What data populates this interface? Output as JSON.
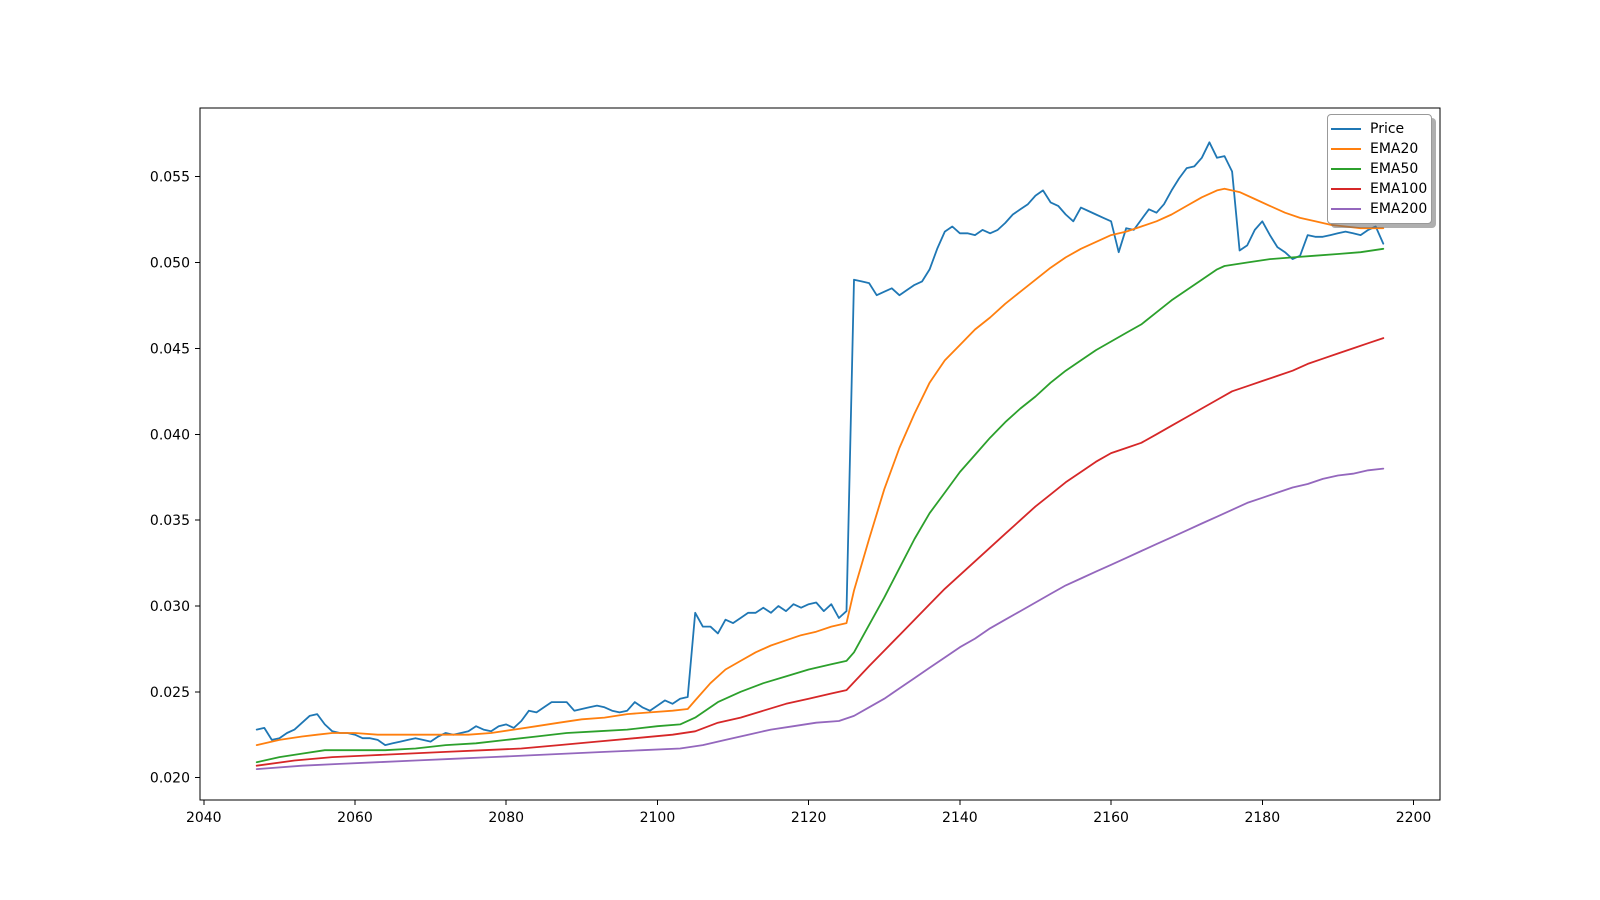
{
  "figure": {
    "background": "#ffffff"
  },
  "chart_data": {
    "type": "line",
    "title": "",
    "xlabel": "",
    "ylabel": "",
    "grid": false,
    "legend_position": "upper right",
    "xlim": [
      2039.5,
      2203.5
    ],
    "ylim": [
      0.0187,
      0.059
    ],
    "xticks": {
      "values": [
        2040,
        2060,
        2080,
        2100,
        2120,
        2140,
        2160,
        2180,
        2200
      ],
      "labels": [
        "2040",
        "2060",
        "2080",
        "2100",
        "2120",
        "2140",
        "2160",
        "2180",
        "2200"
      ]
    },
    "yticks": {
      "values": [
        0.02,
        0.025,
        0.03,
        0.035,
        0.04,
        0.045,
        0.05,
        0.055
      ],
      "labels": [
        "0.020",
        "0.025",
        "0.030",
        "0.035",
        "0.040",
        "0.045",
        "0.050",
        "0.055"
      ]
    },
    "series": [
      {
        "name": "Price",
        "color": "#1f77b4",
        "x_start": 2047,
        "x_step": 1,
        "values": [
          0.0228,
          0.0229,
          0.0222,
          0.0223,
          0.0226,
          0.0228,
          0.0232,
          0.0236,
          0.0237,
          0.0231,
          0.0227,
          0.0226,
          0.0226,
          0.0225,
          0.0223,
          0.0223,
          0.0222,
          0.0219,
          0.022,
          0.0221,
          0.0222,
          0.0223,
          0.0222,
          0.0221,
          0.0224,
          0.0226,
          0.0225,
          0.0226,
          0.0227,
          0.023,
          0.0228,
          0.0227,
          0.023,
          0.0231,
          0.0229,
          0.0233,
          0.0239,
          0.0238,
          0.0241,
          0.0244,
          0.0244,
          0.0244,
          0.0239,
          0.024,
          0.0241,
          0.0242,
          0.0241,
          0.0239,
          0.0238,
          0.0239,
          0.0244,
          0.0241,
          0.0239,
          0.0242,
          0.0245,
          0.0243,
          0.0246,
          0.0247,
          0.0296,
          0.0288,
          0.0288,
          0.0284,
          0.0292,
          0.029,
          0.0293,
          0.0296,
          0.0296,
          0.0299,
          0.0296,
          0.03,
          0.0297,
          0.0301,
          0.0299,
          0.0301,
          0.0302,
          0.0297,
          0.0301,
          0.0293,
          0.0297,
          0.049,
          0.0489,
          0.0488,
          0.0481,
          0.0483,
          0.0485,
          0.0481,
          0.0484,
          0.0487,
          0.0489,
          0.0496,
          0.0508,
          0.0518,
          0.0521,
          0.0517,
          0.0517,
          0.0516,
          0.0519,
          0.0517,
          0.0519,
          0.0523,
          0.0528,
          0.0531,
          0.0534,
          0.0539,
          0.0542,
          0.0535,
          0.0533,
          0.0528,
          0.0524,
          0.0532,
          0.053,
          0.0528,
          0.0526,
          0.0524,
          0.0506,
          0.052,
          0.0519,
          0.0525,
          0.0531,
          0.0529,
          0.0534,
          0.0542,
          0.0549,
          0.0555,
          0.0556,
          0.0561,
          0.057,
          0.0561,
          0.0562,
          0.0553,
          0.0507,
          0.051,
          0.0519,
          0.0524,
          0.0516,
          0.0509,
          0.0506,
          0.0502,
          0.0504,
          0.0516,
          0.0515,
          0.0515,
          0.0516,
          0.0517,
          0.0518,
          0.0517,
          0.0516,
          0.0519,
          0.0521,
          0.0511
        ]
      },
      {
        "name": "EMA20",
        "color": "#ff7f0e",
        "points": [
          [
            2047,
            0.0219
          ],
          [
            2050,
            0.0222
          ],
          [
            2053,
            0.0224
          ],
          [
            2055,
            0.0225
          ],
          [
            2057,
            0.0226
          ],
          [
            2060,
            0.0226
          ],
          [
            2063,
            0.0225
          ],
          [
            2066,
            0.0225
          ],
          [
            2069,
            0.0225
          ],
          [
            2072,
            0.0225
          ],
          [
            2075,
            0.0225
          ],
          [
            2078,
            0.0226
          ],
          [
            2081,
            0.0228
          ],
          [
            2084,
            0.023
          ],
          [
            2087,
            0.0232
          ],
          [
            2090,
            0.0234
          ],
          [
            2093,
            0.0235
          ],
          [
            2096,
            0.0237
          ],
          [
            2099,
            0.0238
          ],
          [
            2102,
            0.0239
          ],
          [
            2104,
            0.024
          ],
          [
            2105,
            0.0245
          ],
          [
            2107,
            0.0255
          ],
          [
            2109,
            0.0263
          ],
          [
            2111,
            0.0268
          ],
          [
            2113,
            0.0273
          ],
          [
            2115,
            0.0277
          ],
          [
            2117,
            0.028
          ],
          [
            2119,
            0.0283
          ],
          [
            2121,
            0.0285
          ],
          [
            2123,
            0.0288
          ],
          [
            2125,
            0.029
          ],
          [
            2126,
            0.0309
          ],
          [
            2128,
            0.0339
          ],
          [
            2130,
            0.0368
          ],
          [
            2132,
            0.0392
          ],
          [
            2134,
            0.0412
          ],
          [
            2136,
            0.043
          ],
          [
            2138,
            0.0443
          ],
          [
            2140,
            0.0452
          ],
          [
            2142,
            0.0461
          ],
          [
            2144,
            0.0468
          ],
          [
            2146,
            0.0476
          ],
          [
            2148,
            0.0483
          ],
          [
            2150,
            0.049
          ],
          [
            2152,
            0.0497
          ],
          [
            2154,
            0.0503
          ],
          [
            2156,
            0.0508
          ],
          [
            2158,
            0.0512
          ],
          [
            2160,
            0.0516
          ],
          [
            2162,
            0.0518
          ],
          [
            2164,
            0.0521
          ],
          [
            2166,
            0.0524
          ],
          [
            2168,
            0.0528
          ],
          [
            2170,
            0.0533
          ],
          [
            2172,
            0.0538
          ],
          [
            2174,
            0.0542
          ],
          [
            2175,
            0.0543
          ],
          [
            2177,
            0.0541
          ],
          [
            2179,
            0.0537
          ],
          [
            2181,
            0.0533
          ],
          [
            2183,
            0.0529
          ],
          [
            2185,
            0.0526
          ],
          [
            2187,
            0.0524
          ],
          [
            2189,
            0.0522
          ],
          [
            2191,
            0.0521
          ],
          [
            2193,
            0.052
          ],
          [
            2196,
            0.052
          ]
        ]
      },
      {
        "name": "EMA50",
        "color": "#2ca02c",
        "points": [
          [
            2047,
            0.0209
          ],
          [
            2050,
            0.0212
          ],
          [
            2053,
            0.0214
          ],
          [
            2056,
            0.0216
          ],
          [
            2060,
            0.0216
          ],
          [
            2064,
            0.0216
          ],
          [
            2068,
            0.0217
          ],
          [
            2072,
            0.0219
          ],
          [
            2076,
            0.022
          ],
          [
            2080,
            0.0222
          ],
          [
            2084,
            0.0224
          ],
          [
            2088,
            0.0226
          ],
          [
            2092,
            0.0227
          ],
          [
            2096,
            0.0228
          ],
          [
            2100,
            0.023
          ],
          [
            2103,
            0.0231
          ],
          [
            2105,
            0.0235
          ],
          [
            2108,
            0.0244
          ],
          [
            2111,
            0.025
          ],
          [
            2114,
            0.0255
          ],
          [
            2117,
            0.0259
          ],
          [
            2120,
            0.0263
          ],
          [
            2123,
            0.0266
          ],
          [
            2125,
            0.0268
          ],
          [
            2126,
            0.0273
          ],
          [
            2128,
            0.0289
          ],
          [
            2130,
            0.0305
          ],
          [
            2132,
            0.0322
          ],
          [
            2134,
            0.0339
          ],
          [
            2136,
            0.0354
          ],
          [
            2138,
            0.0366
          ],
          [
            2140,
            0.0378
          ],
          [
            2142,
            0.0388
          ],
          [
            2144,
            0.0398
          ],
          [
            2146,
            0.0407
          ],
          [
            2148,
            0.0415
          ],
          [
            2150,
            0.0422
          ],
          [
            2152,
            0.043
          ],
          [
            2154,
            0.0437
          ],
          [
            2156,
            0.0443
          ],
          [
            2158,
            0.0449
          ],
          [
            2160,
            0.0454
          ],
          [
            2162,
            0.0459
          ],
          [
            2164,
            0.0464
          ],
          [
            2166,
            0.0471
          ],
          [
            2168,
            0.0478
          ],
          [
            2170,
            0.0484
          ],
          [
            2172,
            0.049
          ],
          [
            2174,
            0.0496
          ],
          [
            2175,
            0.0498
          ],
          [
            2178,
            0.05
          ],
          [
            2181,
            0.0502
          ],
          [
            2184,
            0.0503
          ],
          [
            2187,
            0.0504
          ],
          [
            2190,
            0.0505
          ],
          [
            2193,
            0.0506
          ],
          [
            2196,
            0.0508
          ]
        ]
      },
      {
        "name": "EMA100",
        "color": "#d62728",
        "points": [
          [
            2047,
            0.0207
          ],
          [
            2052,
            0.021
          ],
          [
            2057,
            0.0212
          ],
          [
            2062,
            0.0213
          ],
          [
            2067,
            0.0214
          ],
          [
            2072,
            0.0215
          ],
          [
            2077,
            0.0216
          ],
          [
            2082,
            0.0217
          ],
          [
            2087,
            0.0219
          ],
          [
            2092,
            0.0221
          ],
          [
            2097,
            0.0223
          ],
          [
            2102,
            0.0225
          ],
          [
            2105,
            0.0227
          ],
          [
            2108,
            0.0232
          ],
          [
            2111,
            0.0235
          ],
          [
            2114,
            0.0239
          ],
          [
            2117,
            0.0243
          ],
          [
            2120,
            0.0246
          ],
          [
            2123,
            0.0249
          ],
          [
            2125,
            0.0251
          ],
          [
            2128,
            0.0265
          ],
          [
            2130,
            0.0274
          ],
          [
            2132,
            0.0283
          ],
          [
            2134,
            0.0292
          ],
          [
            2136,
            0.0301
          ],
          [
            2138,
            0.031
          ],
          [
            2140,
            0.0318
          ],
          [
            2142,
            0.0326
          ],
          [
            2144,
            0.0334
          ],
          [
            2146,
            0.0342
          ],
          [
            2148,
            0.035
          ],
          [
            2150,
            0.0358
          ],
          [
            2152,
            0.0365
          ],
          [
            2154,
            0.0372
          ],
          [
            2156,
            0.0378
          ],
          [
            2158,
            0.0384
          ],
          [
            2160,
            0.0389
          ],
          [
            2162,
            0.0392
          ],
          [
            2164,
            0.0395
          ],
          [
            2166,
            0.04
          ],
          [
            2168,
            0.0405
          ],
          [
            2170,
            0.041
          ],
          [
            2172,
            0.0415
          ],
          [
            2174,
            0.042
          ],
          [
            2176,
            0.0425
          ],
          [
            2178,
            0.0428
          ],
          [
            2180,
            0.0431
          ],
          [
            2182,
            0.0434
          ],
          [
            2184,
            0.0437
          ],
          [
            2186,
            0.0441
          ],
          [
            2188,
            0.0444
          ],
          [
            2190,
            0.0447
          ],
          [
            2192,
            0.045
          ],
          [
            2194,
            0.0453
          ],
          [
            2196,
            0.0456
          ]
        ]
      },
      {
        "name": "EMA200",
        "color": "#9467bd",
        "points": [
          [
            2047,
            0.0205
          ],
          [
            2053,
            0.0207
          ],
          [
            2058,
            0.0208
          ],
          [
            2063,
            0.0209
          ],
          [
            2068,
            0.021
          ],
          [
            2073,
            0.0211
          ],
          [
            2078,
            0.0212
          ],
          [
            2083,
            0.0213
          ],
          [
            2088,
            0.0214
          ],
          [
            2093,
            0.0215
          ],
          [
            2098,
            0.0216
          ],
          [
            2103,
            0.0217
          ],
          [
            2106,
            0.0219
          ],
          [
            2109,
            0.0222
          ],
          [
            2112,
            0.0225
          ],
          [
            2115,
            0.0228
          ],
          [
            2118,
            0.023
          ],
          [
            2121,
            0.0232
          ],
          [
            2124,
            0.0233
          ],
          [
            2126,
            0.0236
          ],
          [
            2128,
            0.0241
          ],
          [
            2130,
            0.0246
          ],
          [
            2132,
            0.0252
          ],
          [
            2134,
            0.0258
          ],
          [
            2136,
            0.0264
          ],
          [
            2138,
            0.027
          ],
          [
            2140,
            0.0276
          ],
          [
            2142,
            0.0281
          ],
          [
            2144,
            0.0287
          ],
          [
            2146,
            0.0292
          ],
          [
            2148,
            0.0297
          ],
          [
            2150,
            0.0302
          ],
          [
            2152,
            0.0307
          ],
          [
            2154,
            0.0312
          ],
          [
            2156,
            0.0316
          ],
          [
            2158,
            0.032
          ],
          [
            2160,
            0.0324
          ],
          [
            2162,
            0.0328
          ],
          [
            2164,
            0.0332
          ],
          [
            2166,
            0.0336
          ],
          [
            2168,
            0.034
          ],
          [
            2170,
            0.0344
          ],
          [
            2172,
            0.0348
          ],
          [
            2174,
            0.0352
          ],
          [
            2176,
            0.0356
          ],
          [
            2178,
            0.036
          ],
          [
            2180,
            0.0363
          ],
          [
            2182,
            0.0366
          ],
          [
            2184,
            0.0369
          ],
          [
            2186,
            0.0371
          ],
          [
            2188,
            0.0374
          ],
          [
            2190,
            0.0376
          ],
          [
            2192,
            0.0377
          ],
          [
            2194,
            0.0379
          ],
          [
            2196,
            0.038
          ]
        ]
      }
    ]
  }
}
